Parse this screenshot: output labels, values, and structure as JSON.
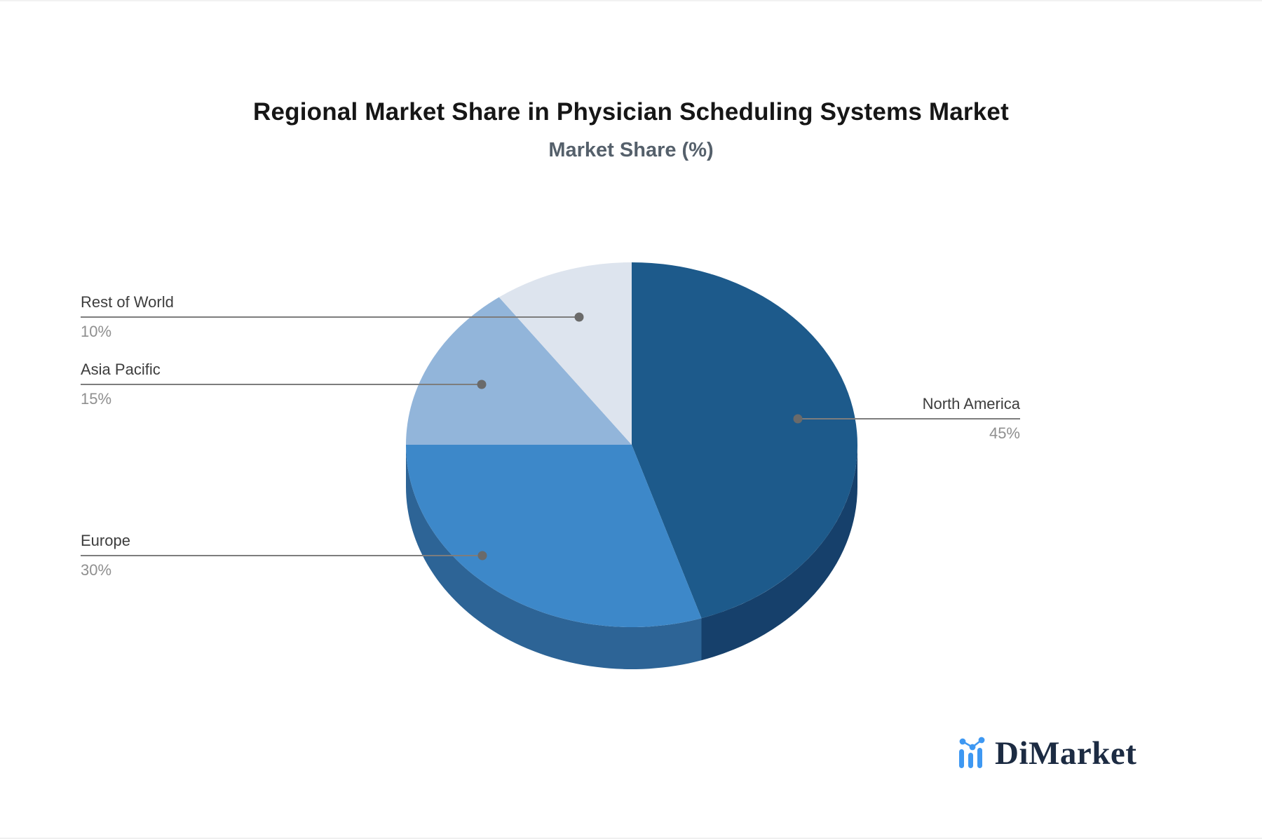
{
  "header": {
    "title": "Regional Market Share in Physician Scheduling Systems Market",
    "subtitle": "Market Share (%)"
  },
  "chart_data": {
    "type": "pie",
    "style": "3d",
    "title": "Regional Market Share in Physician Scheduling Systems Market",
    "subtitle": "Market Share (%)",
    "unit": "%",
    "direction": "clockwise",
    "start_angle_deg": 0,
    "legend_position": "callout-labels",
    "categories": [
      "North America",
      "Europe",
      "Asia Pacific",
      "Rest of World"
    ],
    "values": [
      45,
      30,
      15,
      10
    ],
    "slices": [
      {
        "label": "North America",
        "value": 45,
        "pct_label": "45%",
        "color": "#1d5a8b",
        "side_color": "#16406b",
        "callout_side": "right"
      },
      {
        "label": "Europe",
        "value": 30,
        "pct_label": "30%",
        "color": "#3d88c9",
        "side_color": "#2d6496",
        "callout_side": "left"
      },
      {
        "label": "Asia Pacific",
        "value": 15,
        "pct_label": "15%",
        "color": "#92b5da",
        "side_color": "#6f94bd",
        "callout_side": "left"
      },
      {
        "label": "Rest of World",
        "value": 10,
        "pct_label": "10%",
        "color": "#dde4ee",
        "side_color": "#b9c5d8",
        "callout_side": "left"
      }
    ]
  },
  "branding": {
    "logo_text": "DiMarket",
    "logo_icon": "bar-line-chart-icon",
    "logo_text_color": "#1c2b42",
    "logo_accent_color": "#3e98f2"
  },
  "colors": {
    "background": "#ffffff",
    "leader_line": "#7d7d7d",
    "leader_dot": "#6a6a6a",
    "label_text": "#3d3d3d",
    "pct_text": "#8f8f8f",
    "title_text": "#161616",
    "subtitle_text": "#55606b"
  }
}
